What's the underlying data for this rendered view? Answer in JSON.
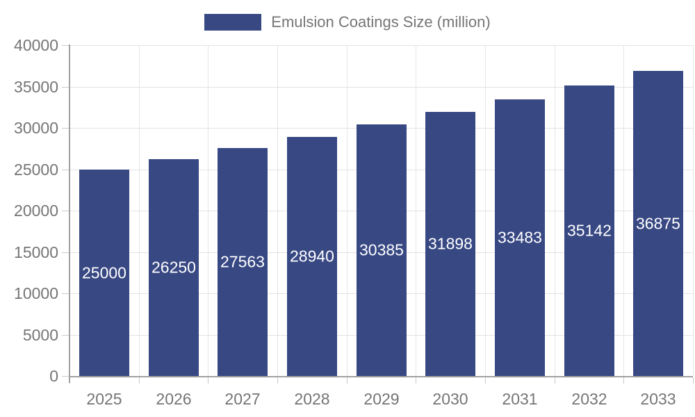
{
  "chart_data": {
    "type": "bar",
    "title": "Emulsion Coatings Size (million)",
    "legend": {
      "label": "Emulsion Coatings Size (million)",
      "position": "top-center"
    },
    "categories": [
      "2025",
      "2026",
      "2027",
      "2028",
      "2029",
      "2030",
      "2031",
      "2032",
      "2033"
    ],
    "values": [
      25000,
      26250,
      27563,
      28940,
      30385,
      31898,
      33483,
      35142,
      36875
    ],
    "bar_value_labels": [
      "25000",
      "26250",
      "27563",
      "28940",
      "30385",
      "31898",
      "33483",
      "35142",
      "36875"
    ],
    "xlabel": "",
    "ylabel": "",
    "ylim": [
      0,
      40000
    ],
    "yticks": [
      0,
      5000,
      10000,
      15000,
      20000,
      25000,
      30000,
      35000,
      40000
    ],
    "grid": true,
    "colors": {
      "bar": "#384883",
      "bar_label_text": "#ffffff",
      "axis_text": "#757575",
      "grid_line": "#e2e2e2",
      "axis_line": "#a0a0a0",
      "background": "#ffffff"
    }
  }
}
